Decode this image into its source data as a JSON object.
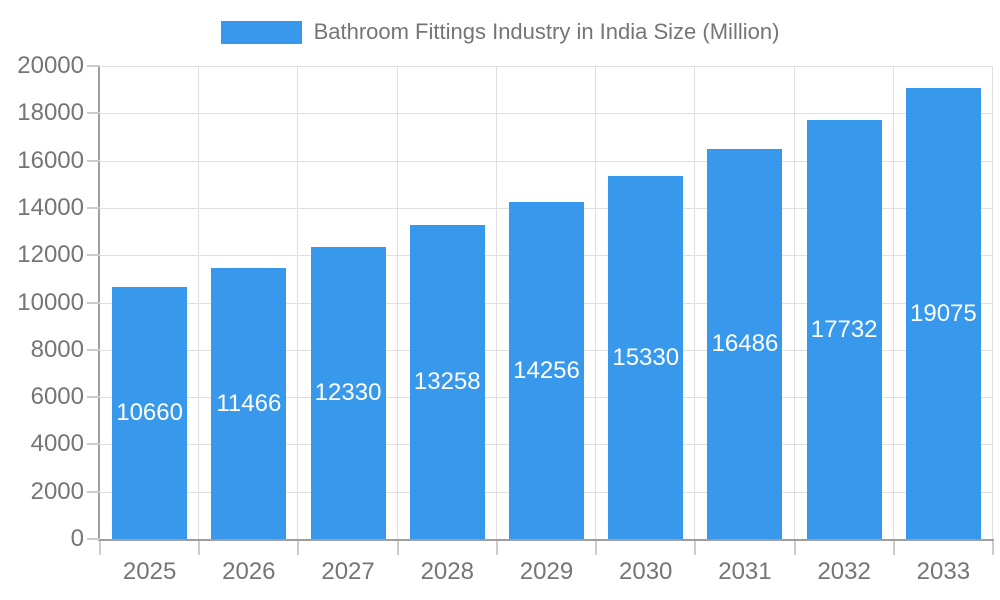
{
  "chart_data": {
    "type": "bar",
    "title": "Bathroom Fittings Industry in India Size (Million)",
    "categories": [
      "2025",
      "2026",
      "2027",
      "2028",
      "2029",
      "2030",
      "2031",
      "2032",
      "2033"
    ],
    "values": [
      10660,
      11466,
      12330,
      13258,
      14256,
      15330,
      16486,
      17732,
      19075
    ],
    "xlabel": "",
    "ylabel": "",
    "ylim": [
      0,
      20000
    ],
    "y_ticks": [
      0,
      2000,
      4000,
      6000,
      8000,
      10000,
      12000,
      14000,
      16000,
      18000,
      20000
    ],
    "grid": true,
    "legend_position": "top",
    "bar_labels_inside": true,
    "colors": {
      "bar": "#3898EC",
      "bar_label": "#FFFFFF",
      "axis_line": "#9E9E9E",
      "gridline": "#E0E0E0",
      "tick": "#CCCCCC",
      "axis_text": "#757575",
      "title_text": "#757575",
      "background": "#FFFFFF"
    }
  }
}
